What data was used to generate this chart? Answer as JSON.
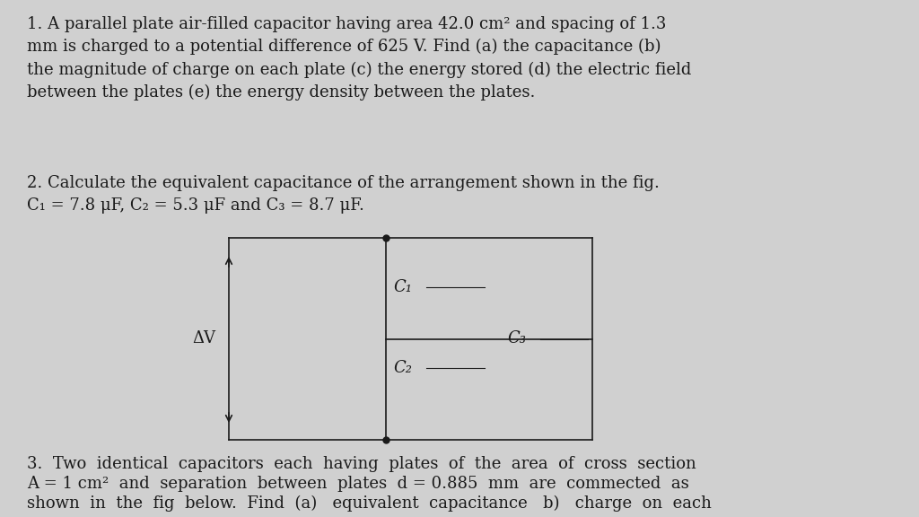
{
  "background_color": "#d0d0d0",
  "text_color": "#1a1a1a",
  "fig_width": 10.24,
  "fig_height": 5.76,
  "problem1": "1. A parallel plate air-filled capacitor having area 42.0 cm² and spacing of 1.3\nmm is charged to a potential difference of 625 V. Find (a) the capacitance (b)\nthe magnitude of charge on each plate (c) the energy stored (d) the electric field\nbetween the plates (e) the energy density between the plates.",
  "problem2_line1": "2. Calculate the equivalent capacitance of the arrangement shown in the fig.",
  "problem2_line2": "C₁ = 7.8 μF, C₂ = 5.3 μF and C₃ = 8.7 μF.",
  "problem3_line1": "3.  Two  identical  capacitors  each  having  plates  of  the  area  of  cross  section",
  "problem3_line2": "A = 1 cm²  and  separation  between  plates  d = 0.885  mm  are  commected  as",
  "problem3_line3": "shown  in  the  fig  below.  Find  (a)   equivalent  capacitance   b)   charge  on  each",
  "C1_label": "C₁",
  "C2_label": "C₂",
  "C3_label": "C₃",
  "AV_label": "ΔV",
  "font_size": 13.0,
  "font_family": "serif"
}
